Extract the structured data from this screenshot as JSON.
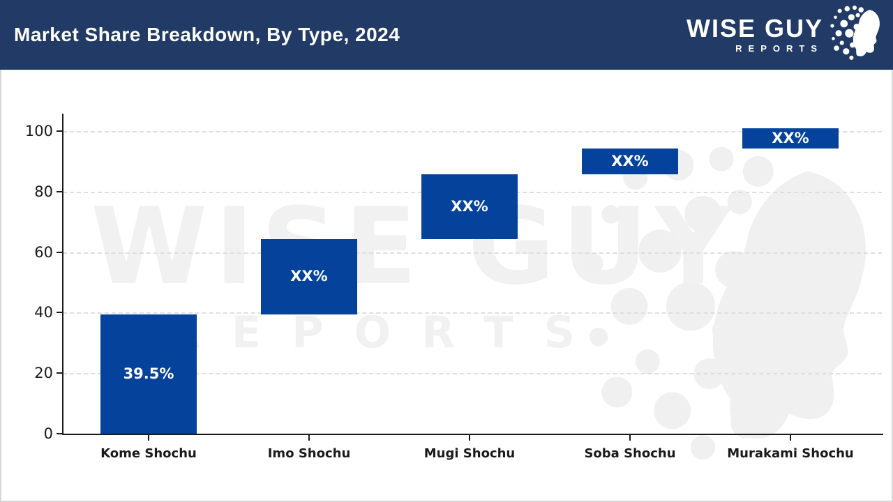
{
  "header": {
    "title": "Market Share Breakdown, By Type, 2024",
    "background_color": "#213a66",
    "logo": {
      "name": "Wise Guy Reports",
      "line1": "WISE GUY",
      "line2": "REPORTS"
    }
  },
  "chart_data": {
    "type": "bar",
    "subtype": "waterfall",
    "title": "Market Share Breakdown, By Type, 2024",
    "xlabel": "",
    "ylabel": "",
    "ylim": [
      0,
      105.8
    ],
    "yticks": [
      0,
      20,
      40,
      60,
      80,
      100
    ],
    "grid": "horizontal-dashed",
    "legend": "none",
    "categories": [
      "Kome Shochu",
      "Imo Shochu",
      "Mugi Shochu",
      "Soba Shochu",
      "Murakami Shochu"
    ],
    "segments": [
      {
        "category": "Kome Shochu",
        "label": "39.5%",
        "start": 0,
        "end": 39.5
      },
      {
        "category": "Imo Shochu",
        "label": "XX%",
        "start": 39.5,
        "end": 64.3
      },
      {
        "category": "Mugi Shochu",
        "label": "XX%",
        "start": 64.3,
        "end": 85.7
      },
      {
        "category": "Soba Shochu",
        "label": "XX%",
        "start": 85.7,
        "end": 94.2
      },
      {
        "category": "Murakami Shochu",
        "label": "XX%",
        "start": 94.2,
        "end": 101
      }
    ],
    "bar_color": "#04429b",
    "bar_label_color": "#ffffff",
    "axis_color": "#1a1a1a",
    "grid_color": "#dedede",
    "tick_label_color": "#1a1a1a"
  },
  "watermark": {
    "line1": "WISE GUY",
    "line2": "REPORTS",
    "color": "#f1f1f1"
  }
}
